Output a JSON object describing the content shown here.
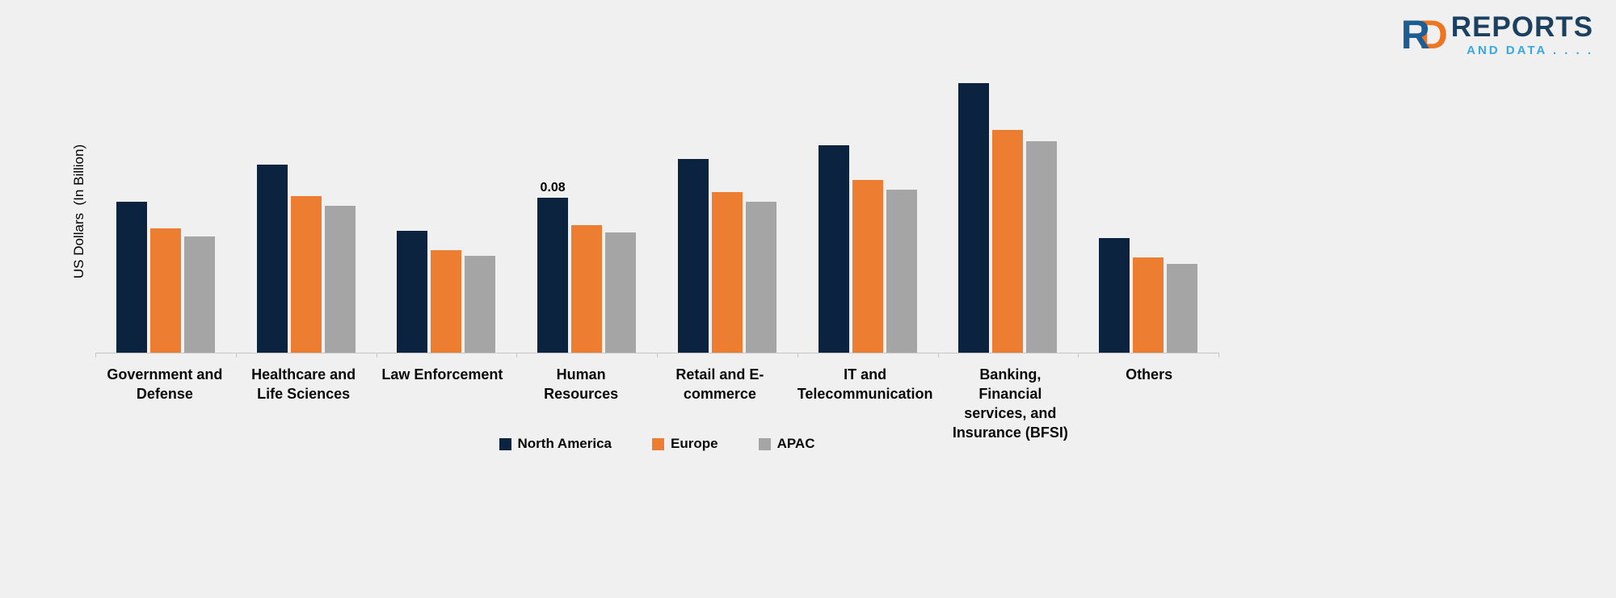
{
  "logo": {
    "icon_r": "R",
    "icon_d": "D",
    "title": "REPORTS",
    "subtitle": "AND DATA . . . ."
  },
  "chart_data": {
    "type": "bar",
    "title": "",
    "xlabel": "",
    "ylabel": "US Dollars  (In Billion)",
    "ylim": [
      0,
      0.15
    ],
    "grid": false,
    "legend_position": "bottom",
    "categories": [
      "Government and Defense",
      "Healthcare and Life Sciences",
      "Law Enforcement",
      "Human Resources",
      "Retail and E-commerce",
      "IT and Telecommunication",
      "Banking, Financial services, and Insurance (BFSI)",
      "Others"
    ],
    "series": [
      {
        "name": "North America",
        "color": "#0c2340",
        "values": [
          0.078,
          0.097,
          0.063,
          0.08,
          0.1,
          0.107,
          0.139,
          0.059
        ]
      },
      {
        "name": "Europe",
        "color": "#ed7d31",
        "values": [
          0.064,
          0.081,
          0.053,
          0.066,
          0.083,
          0.089,
          0.115,
          0.049
        ]
      },
      {
        "name": "APAC",
        "color": "#a5a5a5",
        "values": [
          0.06,
          0.076,
          0.05,
          0.062,
          0.078,
          0.084,
          0.109,
          0.046
        ]
      }
    ],
    "annotations": [
      {
        "category_index": 3,
        "series_index": 0,
        "text": "0.08"
      }
    ]
  }
}
